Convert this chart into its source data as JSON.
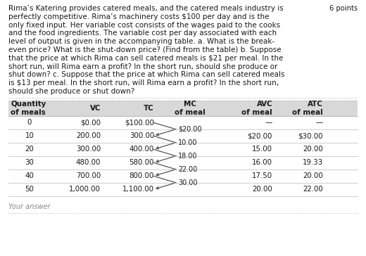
{
  "bg_color": "#ffffff",
  "header_bg": "#d8d8d8",
  "body_font_size": 7.5,
  "points_font_size": 7.2,
  "table_font_size": 7.4,
  "title_line": "Rima’s Katering provides catered meals, and the catered meals industry is",
  "points_text": "6 points",
  "body_lines": [
    "perfectly competitive. Rima’s machinery costs $100 per day and is the",
    "only fixed input. Her variable cost consists of the wages paid to the cooks",
    "and the food ingredients. The variable cost per day associated with each",
    "level of output is given in the accompanying table. a. What is the break-",
    "even price? What is the shut-down price? (Find from the table) b. Suppose",
    "that the price at which Rima can sell catered meals is $21 per meal. In the",
    "short run, will Rima earn a profit? In the short run, should she produce or",
    "shut down? c. Suppose that the price at which Rima can sell catered meals",
    "is $13 per meal. In the short run, will Rima earn a profit? In the short run,",
    "should she produce or shut down?"
  ],
  "footer_text": "Your answer",
  "col_headers": [
    "Quantity\nof meals",
    "VC",
    "TC",
    "MC\nof meal",
    "AVC\nof meal",
    "ATC\nof meal"
  ],
  "rows": [
    [
      "0",
      "$0.00",
      "$100.00",
      "",
      "—",
      "—"
    ],
    [
      "10",
      "200.00",
      "300.00",
      "",
      "$20.00",
      "$30.00"
    ],
    [
      "20",
      "300.00",
      "400.00",
      "",
      "15.00",
      "20.00"
    ],
    [
      "30",
      "480.00",
      "580.00",
      "",
      "16.00",
      "19.33"
    ],
    [
      "40",
      "700.00",
      "800.00",
      "",
      "17.50",
      "20.00"
    ],
    [
      "50",
      "1,000.00",
      "1,100.00",
      "",
      "20.00",
      "22.00"
    ]
  ],
  "mc_labels": [
    "$20.00",
    "10.00",
    "18.00",
    "22.00",
    "30.00"
  ],
  "table_text_color": "#1a1a1a",
  "body_text_color": "#1a1a1a",
  "arrow_color": "#555555",
  "separator_color": "#bbbbbb",
  "dot_color": "#bbbbbb"
}
